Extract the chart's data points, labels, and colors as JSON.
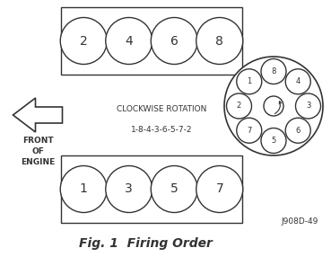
{
  "bg_color": "#ffffff",
  "line_color": "#333333",
  "title": "Fig. 1  Firing Order",
  "title_fontsize": 10,
  "top_bank_numbers": [
    "2",
    "4",
    "6",
    "8"
  ],
  "bottom_bank_numbers": [
    "1",
    "3",
    "5",
    "7"
  ],
  "rotation_text_line1": "CLOCKWISE ROTATION",
  "rotation_text_line2": "1-8-4-3-6-5-7-2",
  "front_text": "FRONT\nOF\nENGINE",
  "ref_code": "J908D-49",
  "dist_numbers": [
    "8",
    "4",
    "3",
    "6",
    "5",
    "7",
    "2",
    "1"
  ],
  "dist_angles_deg": [
    90,
    45,
    0,
    -45,
    -90,
    -135,
    180,
    135
  ]
}
